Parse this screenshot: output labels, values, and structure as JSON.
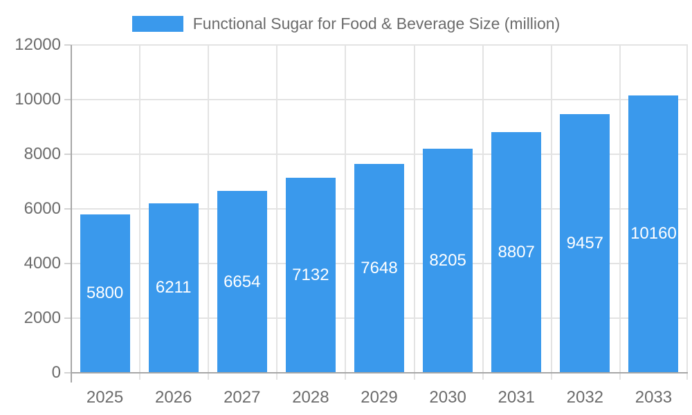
{
  "chart_data": {
    "type": "bar",
    "legend_label": "Functional Sugar for Food & Beverage Size (million)",
    "categories": [
      "2025",
      "2026",
      "2027",
      "2028",
      "2029",
      "2030",
      "2031",
      "2032",
      "2033"
    ],
    "values": [
      5800,
      6211,
      6654,
      7132,
      7648,
      8205,
      8807,
      9457,
      10160
    ],
    "ylim": [
      0,
      12000
    ],
    "ytick_step": 2000,
    "ytick_labels": [
      "0",
      "2000",
      "4000",
      "6000",
      "8000",
      "10000",
      "12000"
    ],
    "grid": true,
    "legend_position": "top",
    "value_labels": "inside-center",
    "colors": {
      "bar": "#3A99EC",
      "bar_value_text": "#ffffff",
      "axis_text": "#6b6b6b",
      "legend_text": "#6b6b6b",
      "gridline": "#e3e3e3",
      "axis_line": "#a6a6a6",
      "tick_mark": "#d2d2d2"
    }
  }
}
